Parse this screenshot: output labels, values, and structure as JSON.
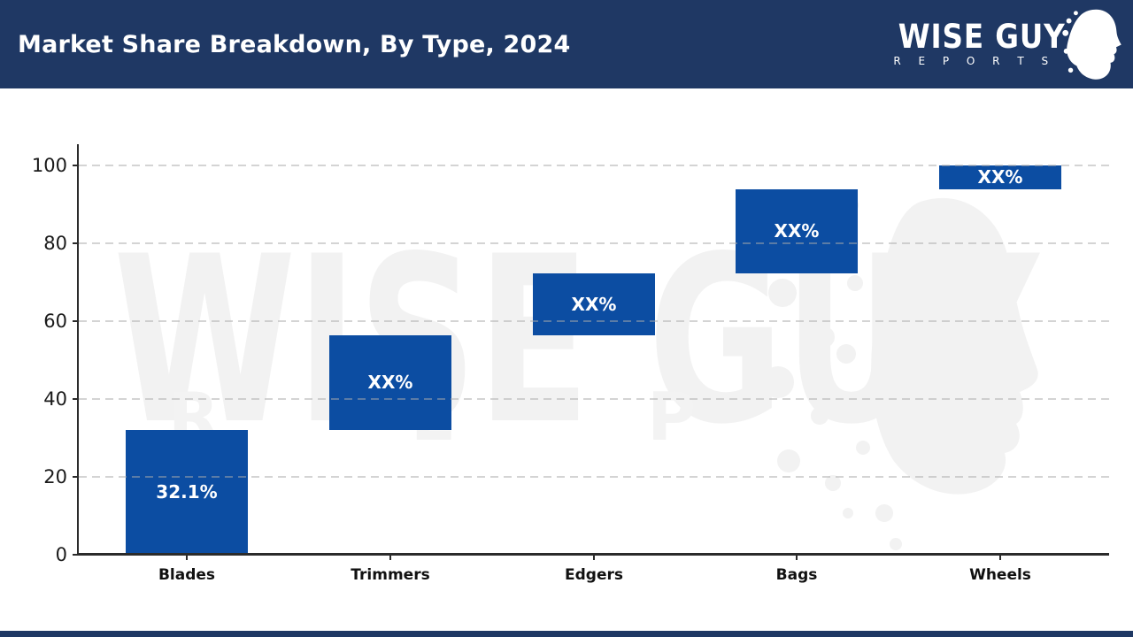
{
  "header": {
    "title": "Market Share Breakdown, By Type, 2024",
    "logo": {
      "line1": "WISE GUY",
      "line2": "R E P O R T S"
    }
  },
  "watermark": {
    "line1": "WISE GUY",
    "line2": "R E P O R T S"
  },
  "colors": {
    "header_bg": "#1f3864",
    "footer_bg": "#1f3864",
    "bar": "#0c4da2",
    "bar_label_text": "#ffffff",
    "axis": "#2b2b2b",
    "gridline": "#d9d9d9",
    "watermark": "#f2f2f2"
  },
  "chart_data": {
    "type": "bar",
    "subtype": "waterfall",
    "title": "Market Share Breakdown, By Type, 2024",
    "categories": [
      "Blades",
      "Trimmers",
      "Edgers",
      "Bags",
      "Wheels"
    ],
    "segments": [
      {
        "start": 0,
        "end": 32.1
      },
      {
        "start": 32.1,
        "end": 56.4
      },
      {
        "start": 56.4,
        "end": 72.3
      },
      {
        "start": 72.3,
        "end": 93.9
      },
      {
        "start": 93.9,
        "end": 100
      }
    ],
    "bar_labels": [
      "32.1%",
      "XX%",
      "XX%",
      "XX%",
      "XX%"
    ],
    "y_ticks": [
      0,
      20,
      40,
      60,
      80,
      100
    ],
    "ylim": [
      0,
      105
    ],
    "xlabel": "",
    "ylabel": "",
    "grid": "horizontal-dashed",
    "legend": "none"
  }
}
